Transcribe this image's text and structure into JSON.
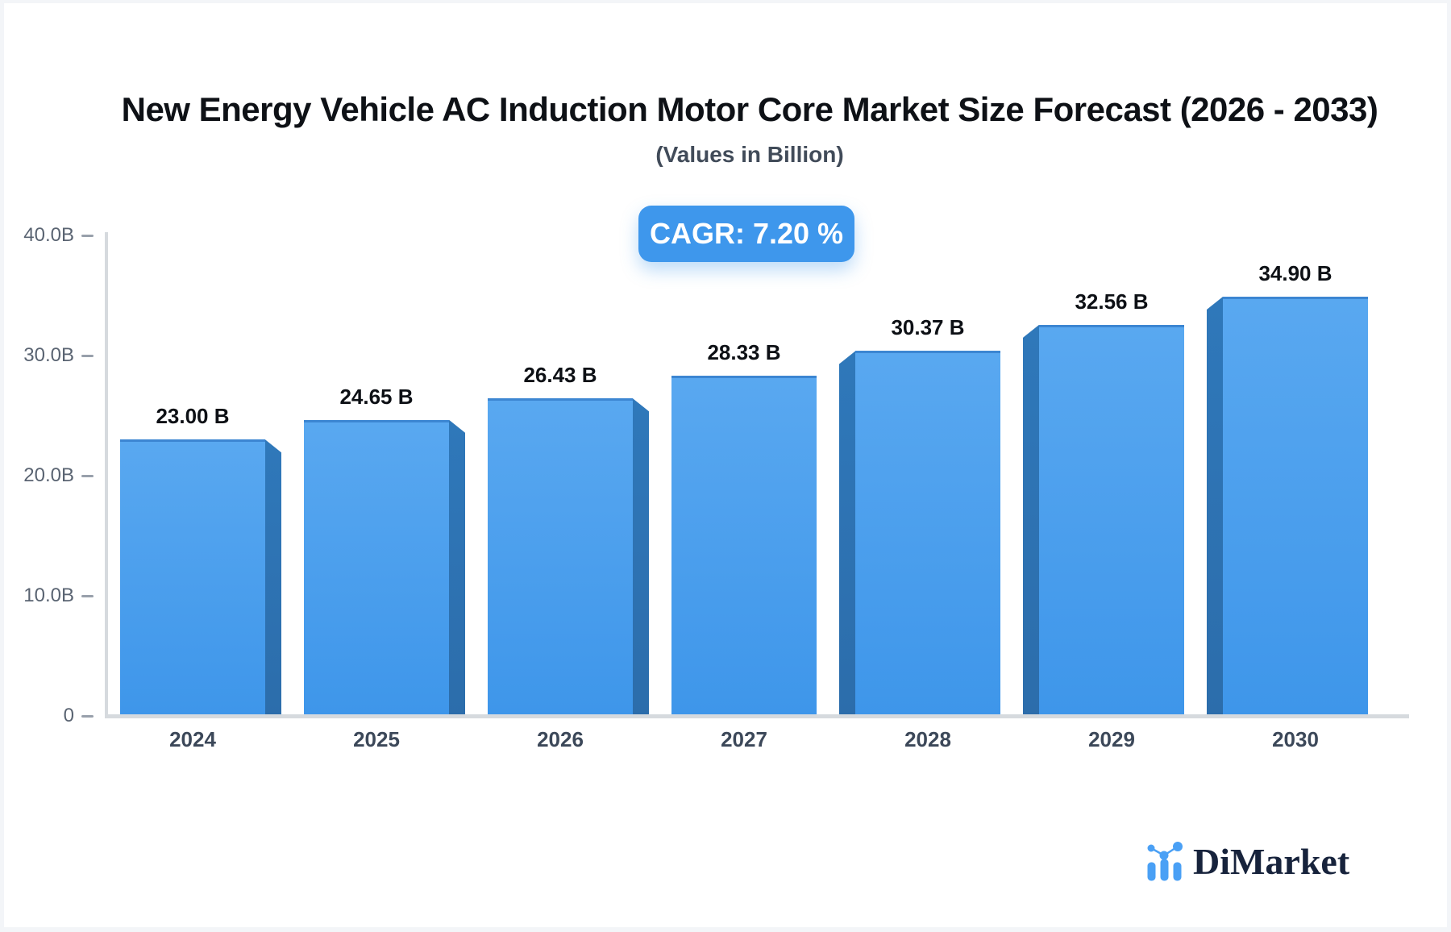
{
  "page": {
    "background": "#f3f5f8",
    "card_background": "#ffffff"
  },
  "header": {
    "title": "New Energy Vehicle AC Induction Motor Core Market Size Forecast (2026 - 2033)",
    "subtitle": "(Values in Billion)"
  },
  "badge": {
    "label": "CAGR: 7.20 %",
    "background": "#3e97ec",
    "text_color": "#ffffff"
  },
  "chart_data": {
    "type": "bar",
    "title": "New Energy Vehicle AC Induction Motor Core Market Size Forecast (2026 - 2033)",
    "subtitle": "(Values in Billion)",
    "categories": [
      "2024",
      "2025",
      "2026",
      "2027",
      "2028",
      "2029",
      "2030"
    ],
    "values": [
      23.0,
      24.65,
      26.43,
      28.33,
      30.37,
      32.56,
      34.9
    ],
    "value_labels": [
      "23.00 B",
      "24.65 B",
      "26.43 B",
      "28.33 B",
      "30.37 B",
      "32.56 B",
      "34.90 B"
    ],
    "xlabel": "",
    "ylabel": "",
    "ylim": [
      0,
      40
    ],
    "yticks": [
      {
        "value": 0,
        "label": "0"
      },
      {
        "value": 10,
        "label": "10.0B"
      },
      {
        "value": 20,
        "label": "20.0B"
      },
      {
        "value": 30,
        "label": "30.0B"
      },
      {
        "value": 40,
        "label": "40.0B"
      }
    ],
    "grid": false,
    "legend": null,
    "bar_3d_effect": "side bevel facing chart center",
    "colors": {
      "bar_top": "#59a8f0",
      "bar_bottom": "#3e96ea",
      "bar_top_edge": "#3c86d2",
      "bar_side_top": "#2f78ba",
      "bar_side_bottom": "#2c6dab",
      "axis_line": "#d6dade",
      "tick": "#98a0ab",
      "tick_label": "#5a6472",
      "category_label": "#3c4859",
      "value_label": "#0d1015"
    }
  },
  "logo": {
    "text": "DiMarket",
    "icon": "mini-bar-chart-icon",
    "icon_color": "#4aa0f5",
    "text_color": "#17233c"
  }
}
